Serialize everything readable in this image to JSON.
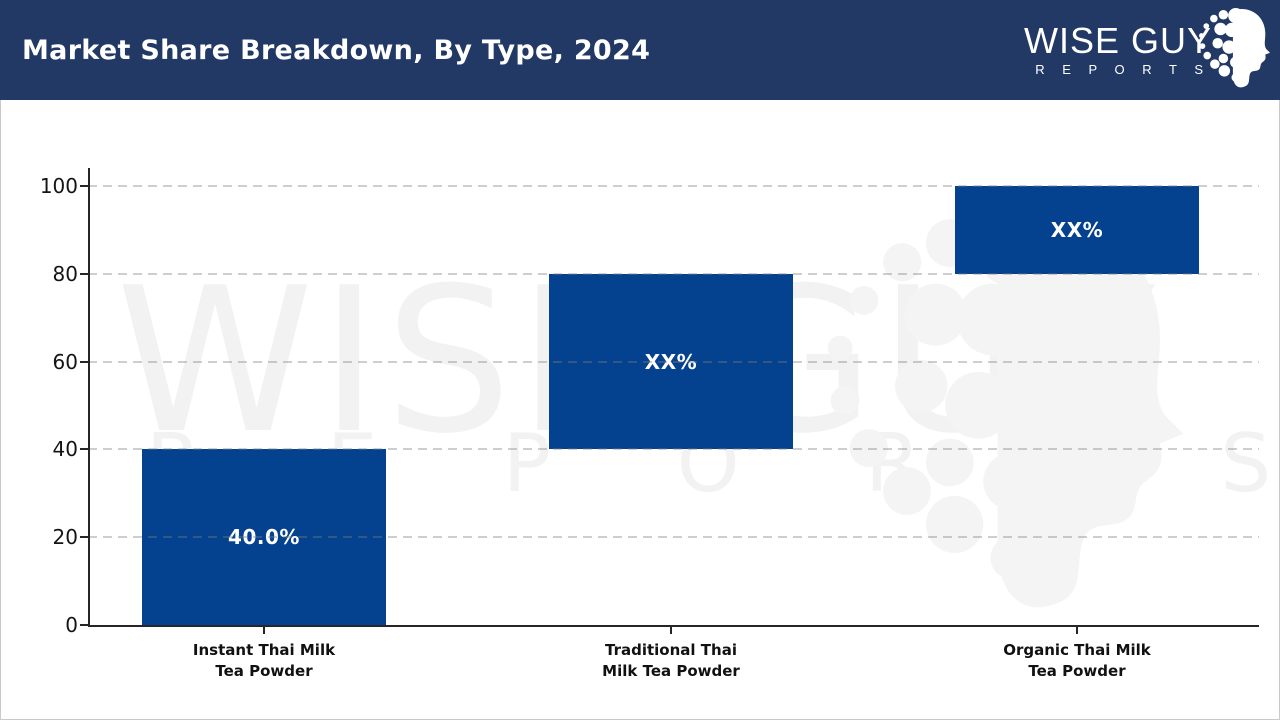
{
  "header": {
    "title": "Market Share Breakdown, By Type, 2024",
    "background_color": "#223865",
    "logo": {
      "primary": "WISE GUY",
      "secondary": "R E P O R T S",
      "face_icon": "dotted-face-profile"
    }
  },
  "watermark": {
    "primary": "WISE GUY",
    "secondary": "R E P O R T S",
    "color": "#f2f2f2"
  },
  "chart_data": {
    "type": "bar",
    "variant": "waterfall",
    "title": "Market Share Breakdown, By Type, 2024",
    "categories": [
      {
        "line1": "Instant Thai Milk",
        "line2": "Tea Powder"
      },
      {
        "line1": "Traditional Thai",
        "line2": "Milk Tea Powder"
      },
      {
        "line1": "Organic Thai Milk",
        "line2": "Tea Powder"
      }
    ],
    "segments": [
      {
        "start": 0,
        "end": 40,
        "label": "40.0%"
      },
      {
        "start": 40,
        "end": 80,
        "label": "XX%"
      },
      {
        "start": 80,
        "end": 100,
        "label": "XX%"
      }
    ],
    "bar_color": "#04418f",
    "bar_label_color": "#ffffff",
    "xlabel": "",
    "ylabel": "",
    "ylim": [
      0,
      100
    ],
    "yticks": [
      0,
      20,
      40,
      60,
      80,
      100
    ],
    "grid": "horizontal-dashed-above-bars",
    "legend": "none"
  }
}
